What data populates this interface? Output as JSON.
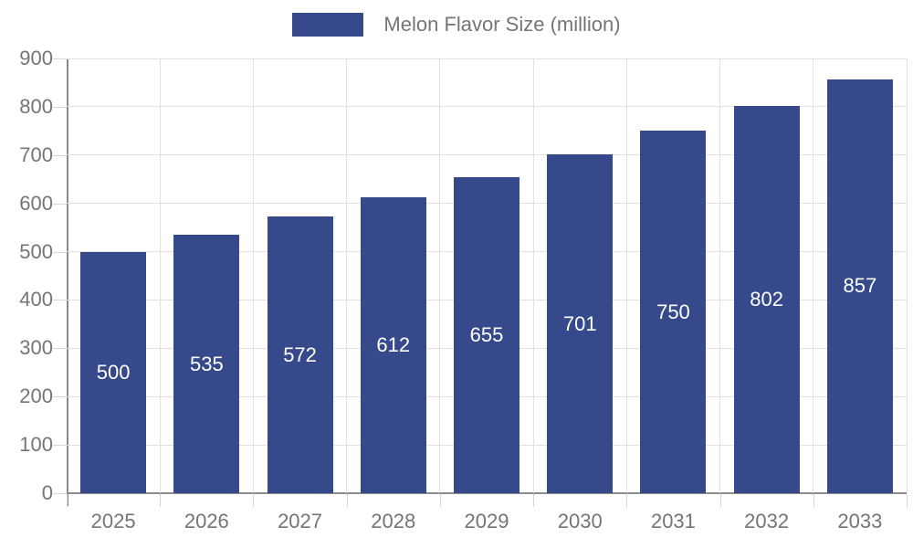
{
  "chart_data": {
    "type": "bar",
    "title": "",
    "categories": [
      "2025",
      "2026",
      "2027",
      "2028",
      "2029",
      "2030",
      "2031",
      "2032",
      "2033"
    ],
    "series": [
      {
        "name": "Melon Flavor Size (million)",
        "values": [
          500,
          535,
          572,
          612,
          655,
          701,
          750,
          802,
          857
        ]
      }
    ],
    "xlabel": "",
    "ylabel": "",
    "ylim": [
      0,
      900
    ],
    "yticks": [
      0,
      100,
      200,
      300,
      400,
      500,
      600,
      700,
      800,
      900
    ],
    "grid": true,
    "legend_position": "top",
    "bar_labels_shown": true
  },
  "legend": {
    "label": "Melon Flavor Size (million)"
  },
  "colors": {
    "bar": "#36498b",
    "grid": "#e0e0e0",
    "axis": "#8c8c8c",
    "tick_text": "#757575",
    "bar_label_text": "#ffffff",
    "background": "#ffffff"
  }
}
